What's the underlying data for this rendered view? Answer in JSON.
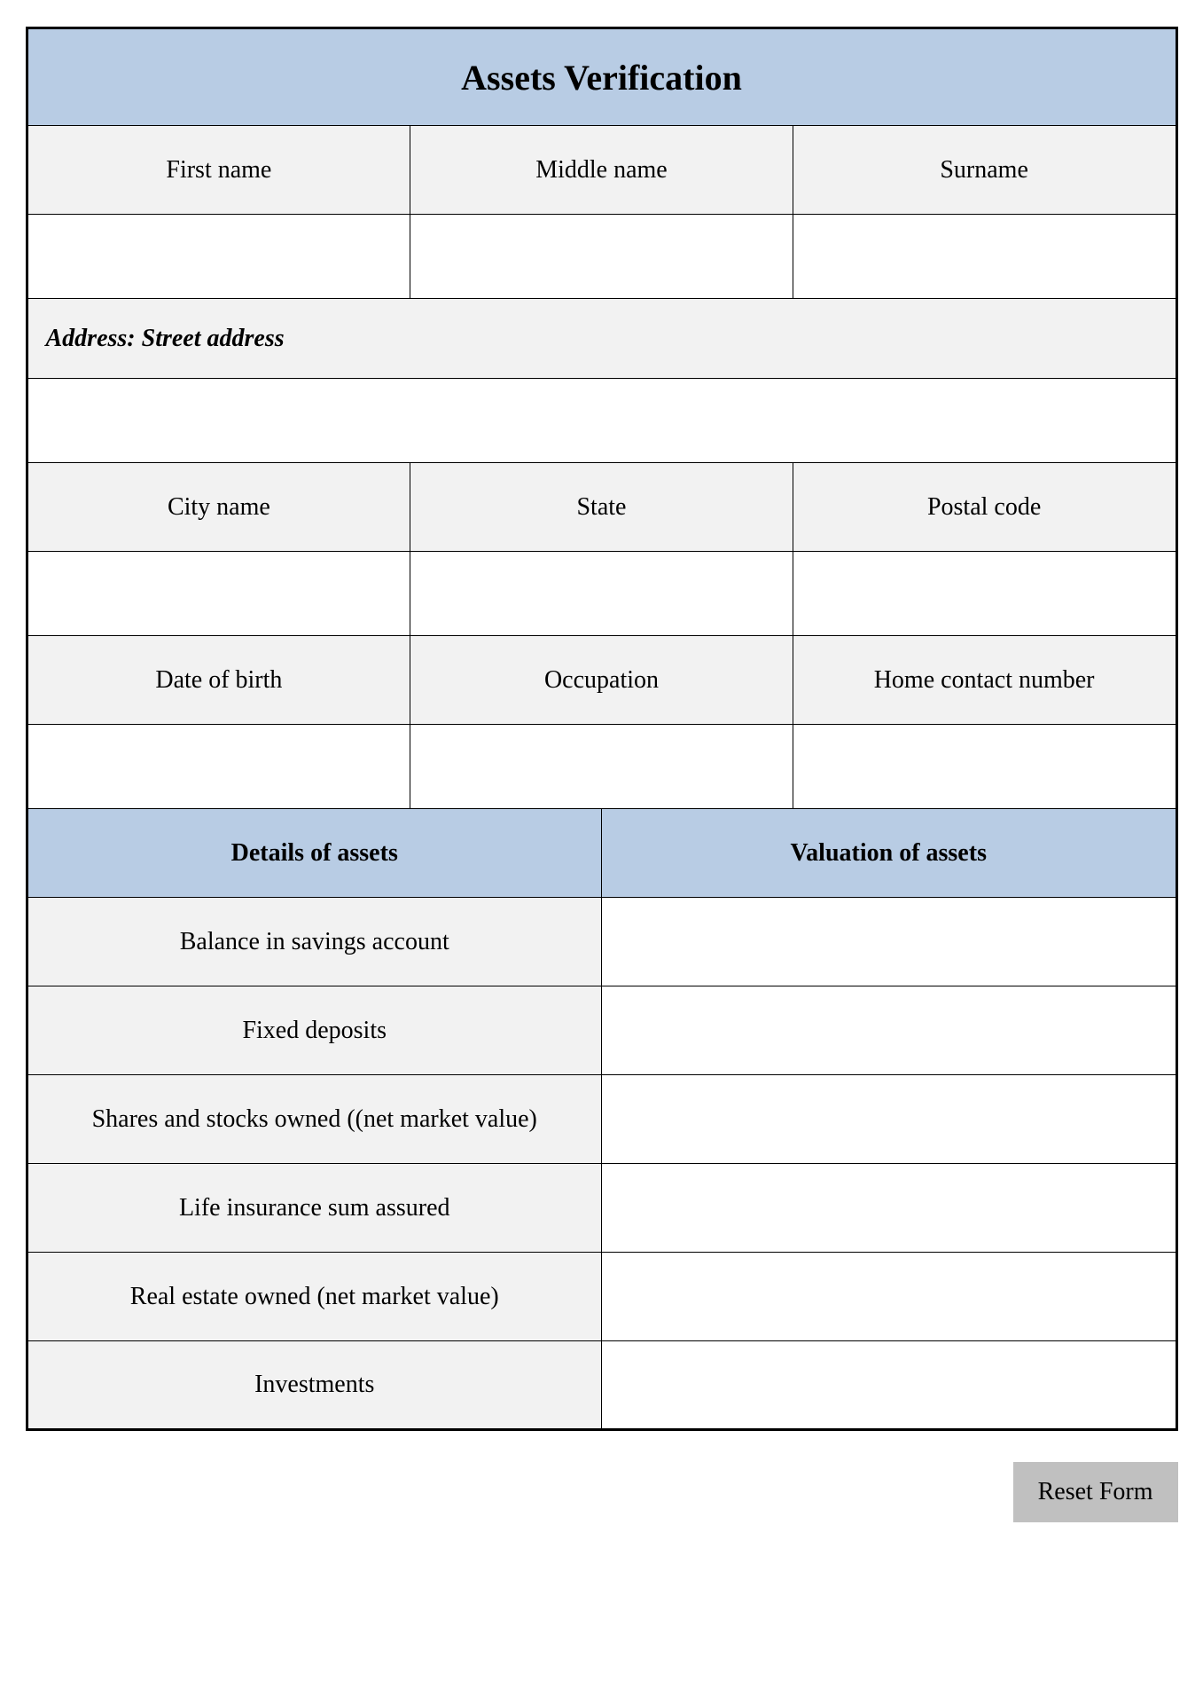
{
  "form": {
    "title": "Assets Verification",
    "name_section": {
      "first_name_label": "First name",
      "middle_name_label": "Middle name",
      "surname_label": "Surname",
      "first_name_value": "",
      "middle_name_value": "",
      "surname_value": ""
    },
    "address_section": {
      "street_label": "Address: Street address",
      "street_value": "",
      "city_label": "City name",
      "state_label": "State",
      "postal_label": "Postal code",
      "city_value": "",
      "state_value": "",
      "postal_value": ""
    },
    "personal_section": {
      "dob_label": "Date of birth",
      "occupation_label": "Occupation",
      "contact_label": "Home contact number",
      "dob_value": "",
      "occupation_value": "",
      "contact_value": ""
    },
    "assets_section": {
      "details_header": "Details of assets",
      "valuation_header": "Valuation of assets",
      "rows": [
        {
          "label": "Balance in savings account",
          "value": ""
        },
        {
          "label": "Fixed deposits",
          "value": ""
        },
        {
          "label": "Shares and stocks owned ((net market value)",
          "value": ""
        },
        {
          "label": "Life insurance sum assured",
          "value": ""
        },
        {
          "label": "Real estate owned (net market value)",
          "value": ""
        },
        {
          "label": "Investments",
          "value": ""
        }
      ]
    },
    "reset_button_label": "Reset Form"
  },
  "styling": {
    "header_bg": "#b8cce4",
    "label_bg": "#f2f2f2",
    "input_bg": "#ffffff",
    "border_color": "#000000",
    "button_bg": "#c0c0c0",
    "title_fontsize": 40,
    "body_fontsize": 28
  }
}
